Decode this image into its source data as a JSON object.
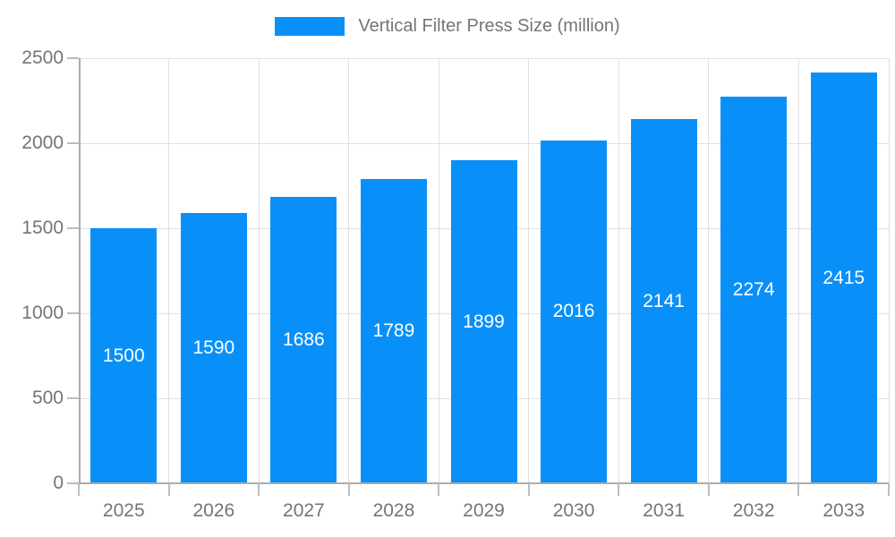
{
  "chart_data": {
    "type": "bar",
    "title": "Vertical Filter Press Size (million)",
    "categories": [
      "2025",
      "2026",
      "2027",
      "2028",
      "2029",
      "2030",
      "2031",
      "2032",
      "2033"
    ],
    "series": [
      {
        "name": "Vertical Filter Press Size (million)",
        "values": [
          1500,
          1590,
          1686,
          1789,
          1899,
          2016,
          2141,
          2274,
          2415
        ]
      }
    ],
    "bar_value_labels": [
      "1500",
      "1590",
      "1686",
      "1789",
      "1899",
      "2016",
      "2141",
      "2274",
      "2415"
    ],
    "xlabel": "",
    "ylabel": "",
    "ylim": [
      0,
      2500
    ],
    "y_ticks": [
      0,
      500,
      1000,
      1500,
      2000,
      2500
    ],
    "grid": true,
    "legend_position": "top",
    "colors": {
      "bar": "#0990f8",
      "bar_label_text": "#ffffff",
      "axis_line": "#ababab",
      "gridline": "#e0e0e0",
      "tick": "#bdbdbd",
      "label_text": "#757575"
    }
  }
}
